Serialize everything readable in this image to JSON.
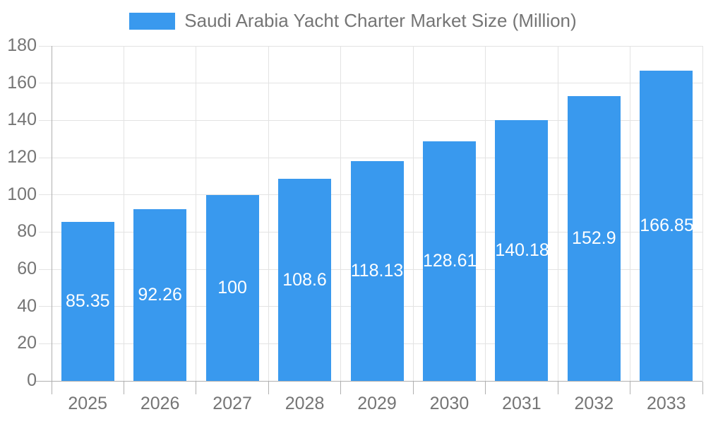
{
  "chart_data": {
    "type": "bar",
    "title": "Saudi Arabia Yacht Charter Market Size (Million)",
    "categories": [
      "2025",
      "2026",
      "2027",
      "2028",
      "2029",
      "2030",
      "2031",
      "2032",
      "2033"
    ],
    "values": [
      85.35,
      92.26,
      100,
      108.6,
      118.13,
      128.61,
      140.18,
      152.9,
      166.85
    ],
    "bar_labels": [
      "85.35",
      "92.26",
      "100",
      "108.6",
      "118.13",
      "128.61",
      "140.18",
      "152.9",
      "166.85"
    ],
    "ylabel": "",
    "xlabel": "",
    "ylim": [
      0,
      180
    ],
    "ytick_step": 20,
    "yticks": [
      0,
      20,
      40,
      60,
      80,
      100,
      120,
      140,
      160,
      180
    ],
    "grid": true,
    "legend_position": "top",
    "colors": {
      "bar": "#3999ee",
      "bar_label": "#ffffff",
      "title": "#757575",
      "axis_label": "#757575",
      "gridline": "#e3e3e3",
      "axis_line": "#b0b0b0",
      "background": "#ffffff"
    }
  }
}
